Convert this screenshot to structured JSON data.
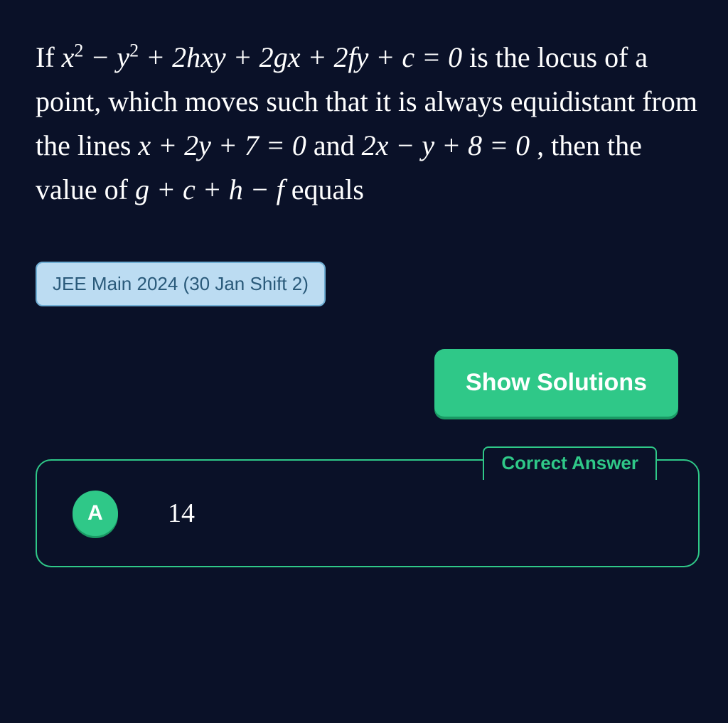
{
  "question": {
    "prefix": "If ",
    "eq1": "x² − y² + 2hxy + 2gx + 2fy + c = 0",
    "mid1": " is the locus of a point, which moves such that it is always equidistant from the lines ",
    "eq2": "x + 2y + 7 = 0",
    "mid2": " and ",
    "eq3": "2x − y + 8 = 0",
    "mid3": " , then the value of ",
    "eq4": "g + c + h − f",
    "suffix": " equals"
  },
  "tag": {
    "label": "JEE Main 2024 (30 Jan Shift 2)",
    "bg_color": "#bcdcf2",
    "text_color": "#2a5a7a",
    "border_color": "#6faed4"
  },
  "button": {
    "label": "Show Solutions",
    "bg_color": "#2fc888",
    "text_color": "#ffffff"
  },
  "answer": {
    "tab_label": "Correct Answer",
    "option_letter": "A",
    "option_value": "14",
    "border_color": "#2fc888",
    "circle_bg": "#2fc888"
  },
  "page": {
    "bg_color": "#0a1128",
    "text_color": "#ffffff"
  }
}
